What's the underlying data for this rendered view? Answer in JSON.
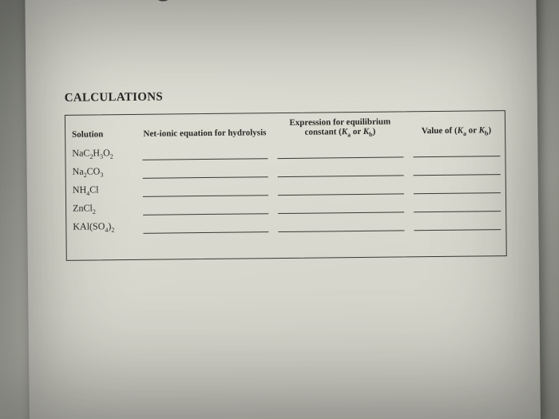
{
  "section_title": "CALCULATIONS",
  "headers": {
    "solution": "Solution",
    "net_ionic": "Net-ionic equation for hydrolysis",
    "expression_prefix": "Expression for equilibrium constant (",
    "expression_k1": "K",
    "expression_k1_sub": "a",
    "expression_or": " or ",
    "expression_k2": "K",
    "expression_k2_sub": "b",
    "expression_suffix": ")",
    "value_prefix": "Value of (",
    "value_k1": "K",
    "value_k1_sub": "a",
    "value_or": " or ",
    "value_k2": "K",
    "value_k2_sub": "b",
    "value_suffix": ")"
  },
  "rows": [
    {
      "formula_html": "NaC<sub>2</sub>H<sub>3</sub>O<sub>2</sub>"
    },
    {
      "formula_html": "Na<sub>2</sub>CO<sub>3</sub>"
    },
    {
      "formula_html": "NH<sub>4</sub>Cl"
    },
    {
      "formula_html": "ZnCl<sub>2</sub>"
    },
    {
      "formula_html": "KAl(SO<sub>4</sub>)<sub>2</sub>"
    }
  ],
  "colors": {
    "paper": "#dcdcd2",
    "ink": "#2a2a28",
    "background": "#8e9089"
  }
}
